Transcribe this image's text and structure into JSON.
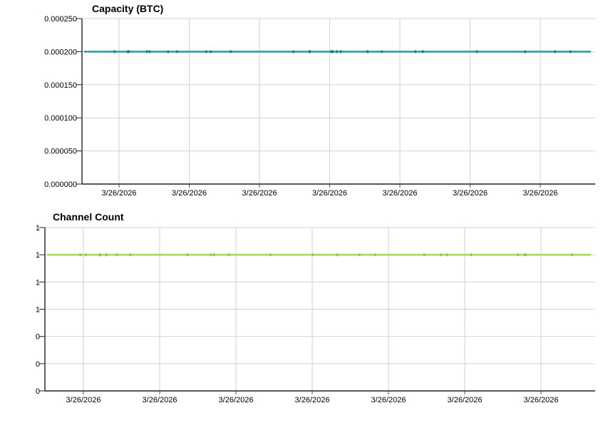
{
  "style": {
    "background": "#ffffff",
    "grid_color": "#d2d2d2",
    "axis_color": "#222222",
    "tick_color": "#555555",
    "text_color": "#000000"
  },
  "chart_data": [
    {
      "type": "line",
      "title": "Capacity (BTC)",
      "xlabel": "",
      "ylabel": "",
      "grid": true,
      "legend": false,
      "ylim": [
        0,
        0.00025
      ],
      "y_ticks": [
        0,
        5e-05,
        0.0001,
        0.00015,
        0.0002,
        0.00025
      ],
      "y_tick_labels": [
        "0.000000",
        "0.000050",
        "0.000100",
        "0.000150",
        "0.000200",
        "0.000250"
      ],
      "x_tick_labels": [
        "3/26/2026",
        "3/26/2026",
        "3/26/2026",
        "3/26/2026",
        "3/26/2026",
        "3/26/2026",
        "3/26/2026"
      ],
      "series": [
        {
          "name": "Capacity (BTC)",
          "values": [
            0.0002,
            0.0002,
            0.0002,
            0.0002,
            0.0002,
            0.0002,
            0.0002
          ],
          "color": "#2b9ea6",
          "marker_color": "#147e8c"
        }
      ]
    },
    {
      "type": "line",
      "title": "Channel Count",
      "xlabel": "",
      "ylabel": "",
      "grid": true,
      "legend": false,
      "ylim": [
        0,
        1.2
      ],
      "y_ticks": [
        0,
        0.2,
        0.4,
        0.6,
        0.8,
        1.0,
        1.2
      ],
      "y_tick_labels": [
        "0",
        "0",
        "0",
        "1",
        "1",
        "1",
        "1"
      ],
      "x_tick_labels": [
        "3/26/2026",
        "3/26/2026",
        "3/26/2026",
        "3/26/2026",
        "3/26/2026",
        "3/26/2026",
        "3/26/2026"
      ],
      "series": [
        {
          "name": "Channel Count",
          "values": [
            1,
            1,
            1,
            1,
            1,
            1,
            1
          ],
          "color": "#a6d95c",
          "marker_color": "#8fc845"
        }
      ]
    }
  ]
}
